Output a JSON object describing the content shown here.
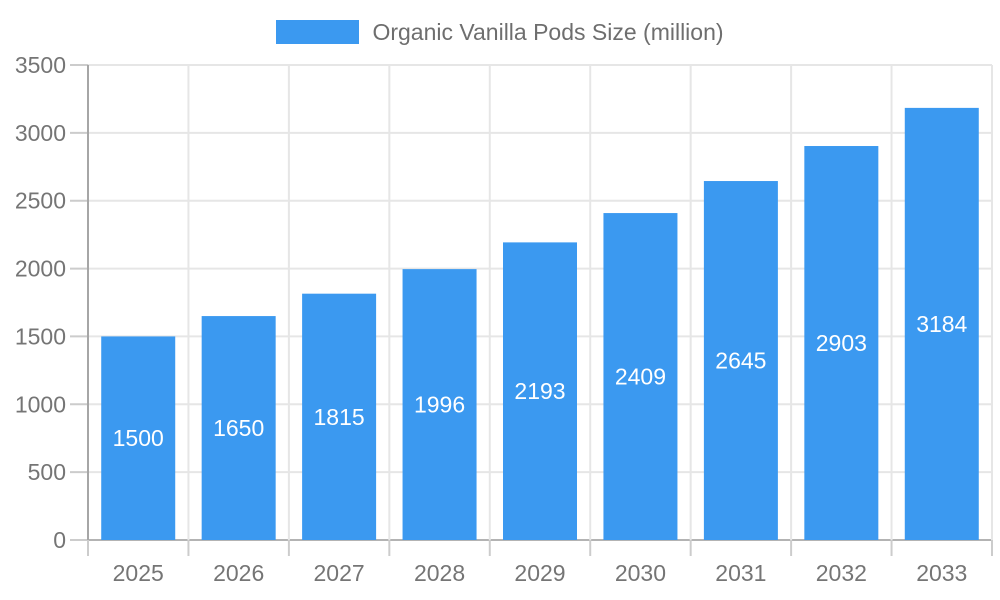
{
  "chart_data": {
    "type": "bar",
    "title": "Organic Vanilla Pods Size (million)",
    "categories": [
      "2025",
      "2026",
      "2027",
      "2028",
      "2029",
      "2030",
      "2031",
      "2032",
      "2033"
    ],
    "values": [
      1500,
      1650,
      1815,
      1996,
      2193,
      2409,
      2645,
      2903,
      3184
    ],
    "xlabel": "",
    "ylabel": "",
    "ylim": [
      0,
      3500
    ],
    "y_ticks": [
      0,
      500,
      1000,
      1500,
      2000,
      2500,
      3000,
      3500
    ],
    "grid": true,
    "legend_position": "top",
    "value_labels_inside_bars": true,
    "colors": {
      "bar": "#3b99f0",
      "value_label": "#ffffff",
      "axis_text": "#757575",
      "legend_text": "#6e6e6e",
      "grid_line": "#e6e6e6",
      "baseline": "#b3b3b3",
      "axis_line": "#a6a6a6",
      "tick_mark": "#cccccc",
      "background": "#ffffff"
    }
  }
}
